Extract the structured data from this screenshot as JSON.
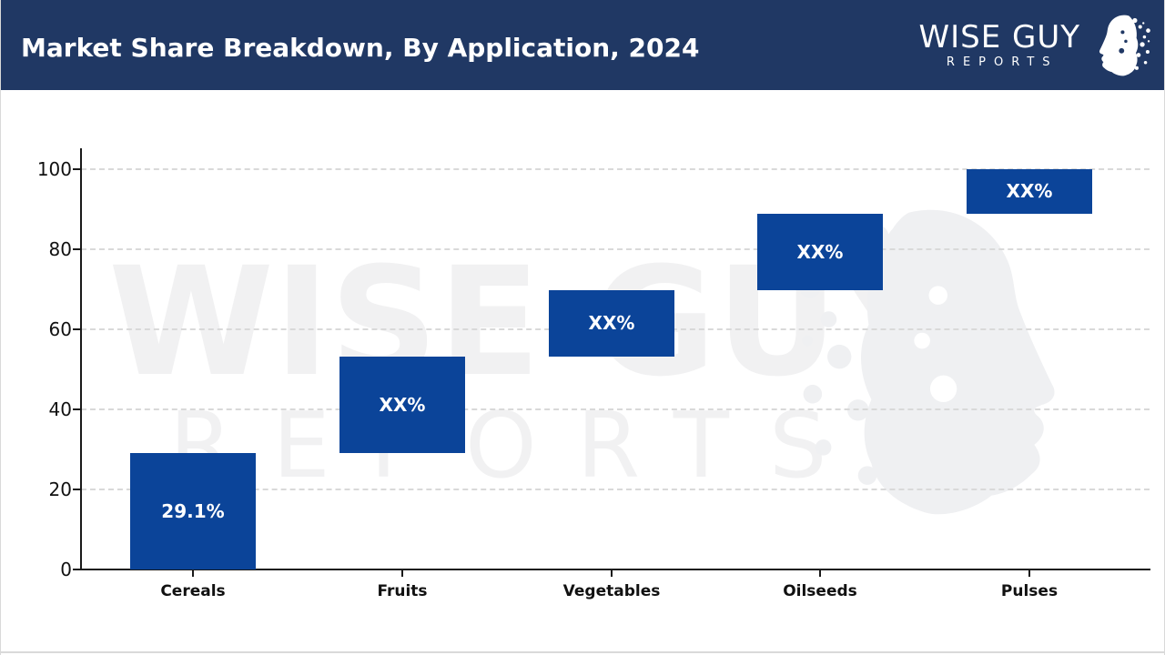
{
  "header": {
    "title": "Market Share Breakdown, By Application, 2024",
    "bg_color": "#203864",
    "logo": {
      "wordmark": "WISE GUY",
      "subtext": "REPORTS"
    }
  },
  "watermark": {
    "wordmark": "WISE GUY",
    "subtext": "REPORTS"
  },
  "chart_data": {
    "type": "bar",
    "subtype": "waterfall",
    "title": "Market Share Breakdown, By Application, 2024",
    "categories": [
      "Cereals",
      "Fruits",
      "Vegetables",
      "Oilseeds",
      "Pulses"
    ],
    "bars": [
      {
        "category": "Cereals",
        "start": 0,
        "end": 29.1,
        "label": "29.1%"
      },
      {
        "category": "Fruits",
        "start": 29.1,
        "end": 53.2,
        "label": "XX%"
      },
      {
        "category": "Vegetables",
        "start": 53.2,
        "end": 69.8,
        "label": "XX%"
      },
      {
        "category": "Oilseeds",
        "start": 69.8,
        "end": 88.9,
        "label": "XX%"
      },
      {
        "category": "Pulses",
        "start": 88.9,
        "end": 100,
        "label": "XX%"
      }
    ],
    "xlabel": "",
    "ylabel": "",
    "ylim": [
      0,
      105
    ],
    "yticks": [
      0,
      20,
      40,
      60,
      80,
      100
    ],
    "grid": "horizontal dashed",
    "legend": "none",
    "bar_color": "#0b4499",
    "bar_label_color": "#ffffff"
  }
}
